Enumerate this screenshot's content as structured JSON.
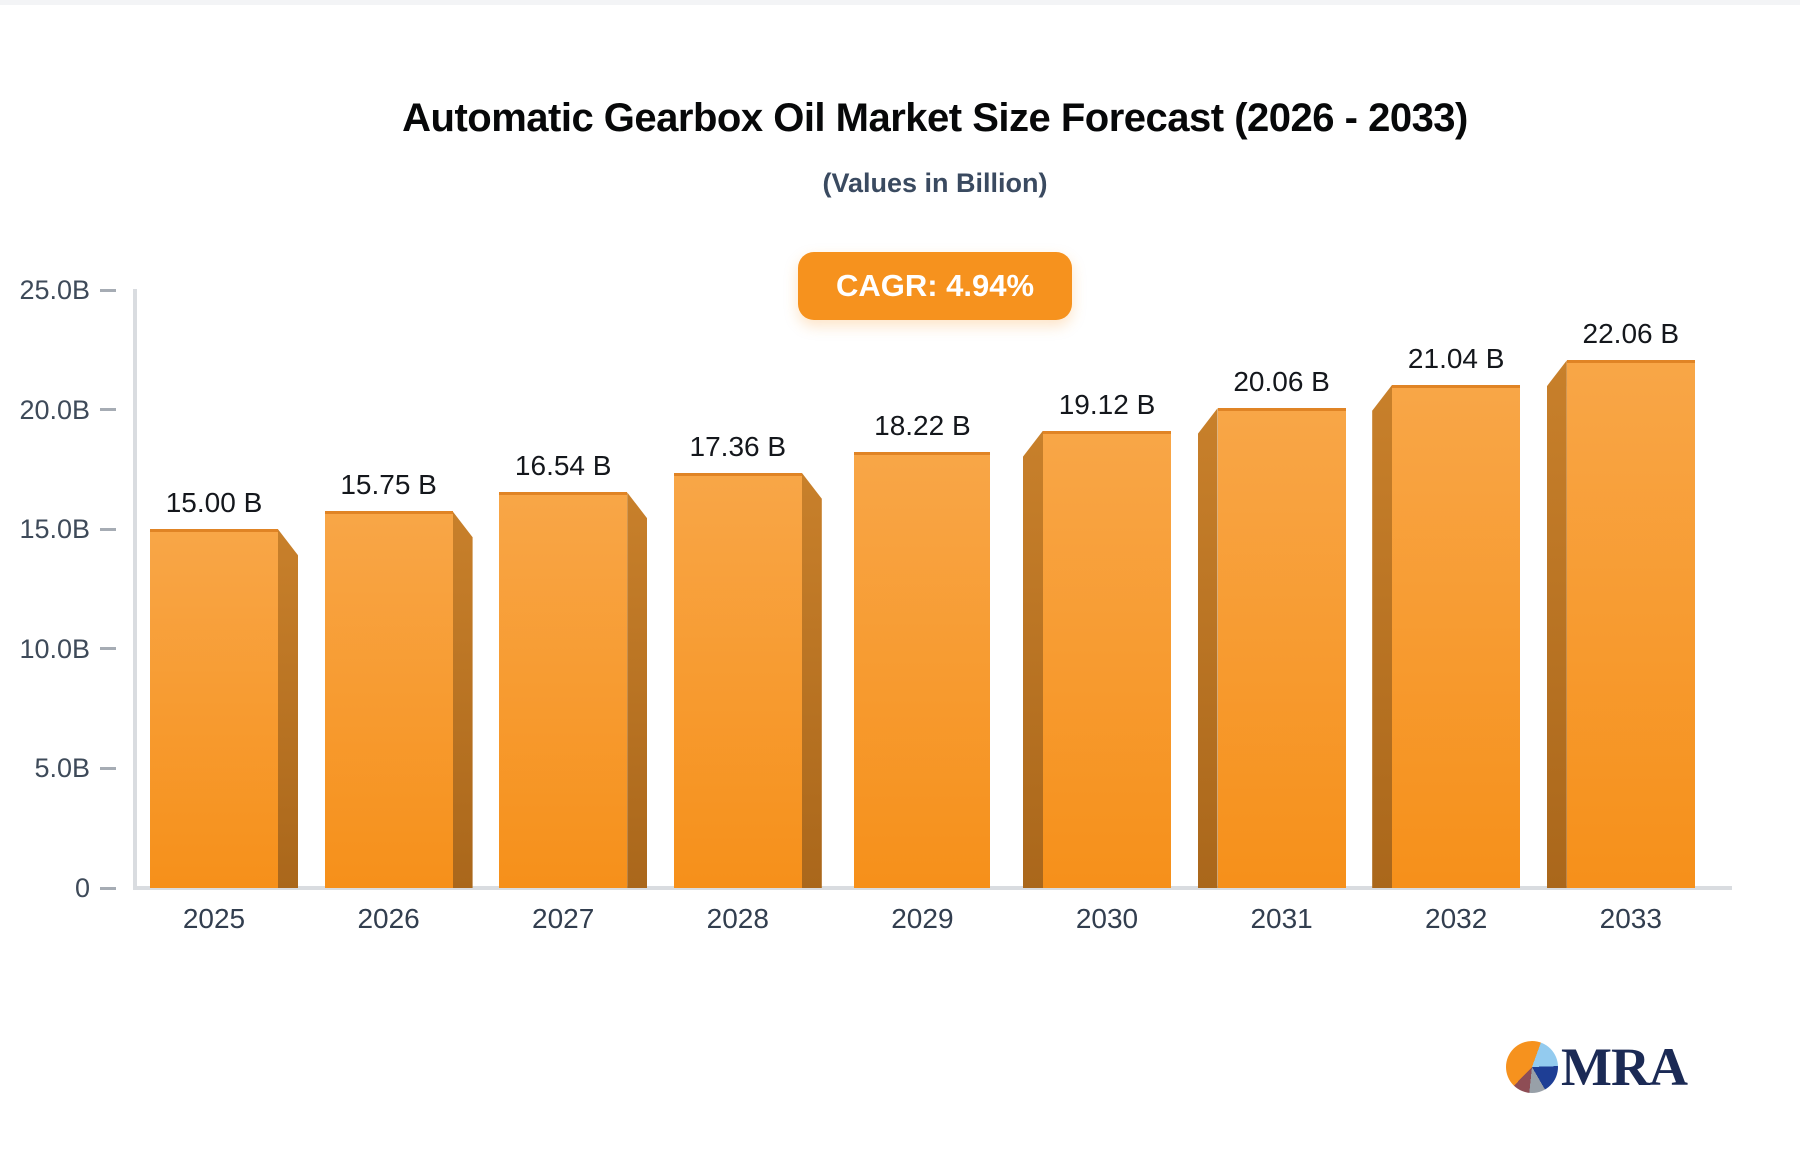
{
  "chart": {
    "title": "Automatic Gearbox Oil Market Size Forecast (2026 - 2033)",
    "subtitle": "(Values in Billion)",
    "cagr_label": "CAGR: 4.94%"
  },
  "chart_data": {
    "type": "bar",
    "title": "Automatic Gearbox Oil Market Size Forecast (2026 - 2033)",
    "subtitle": "(Values in Billion)",
    "annotation": "CAGR: 4.94%",
    "categories": [
      "2025",
      "2026",
      "2027",
      "2028",
      "2029",
      "2030",
      "2031",
      "2032",
      "2033"
    ],
    "values": [
      15.0,
      15.75,
      16.54,
      17.36,
      18.22,
      19.12,
      20.06,
      21.04,
      22.06
    ],
    "bar_labels": [
      "15.00 B",
      "15.75 B",
      "16.54 B",
      "17.36 B",
      "18.22 B",
      "19.12 B",
      "20.06 B",
      "21.04 B",
      "22.06 B"
    ],
    "unit": "Billion",
    "xlabel": "",
    "ylabel": "",
    "ylim": [
      0,
      25
    ],
    "y_ticks": [
      {
        "label": "25.0B",
        "value": 25
      },
      {
        "label": "20.0B",
        "value": 20
      },
      {
        "label": "15.0B",
        "value": 15
      },
      {
        "label": "10.0B",
        "value": 10
      },
      {
        "label": "5.0B",
        "value": 5
      },
      {
        "label": "0",
        "value": 0
      }
    ],
    "grid": false,
    "legend": false,
    "bar_style": "3d-box",
    "colors": {
      "bar_top": "#F8A647",
      "bar_bottom": "#F6901A",
      "bar_side": "#B8701F",
      "accent": "#F6921E",
      "axis": "#D9DCE0",
      "tick": "#A6ACB4",
      "label_text": "#14171C",
      "axis_text": "#3E4A59"
    }
  },
  "branding": {
    "name": "MRA"
  }
}
